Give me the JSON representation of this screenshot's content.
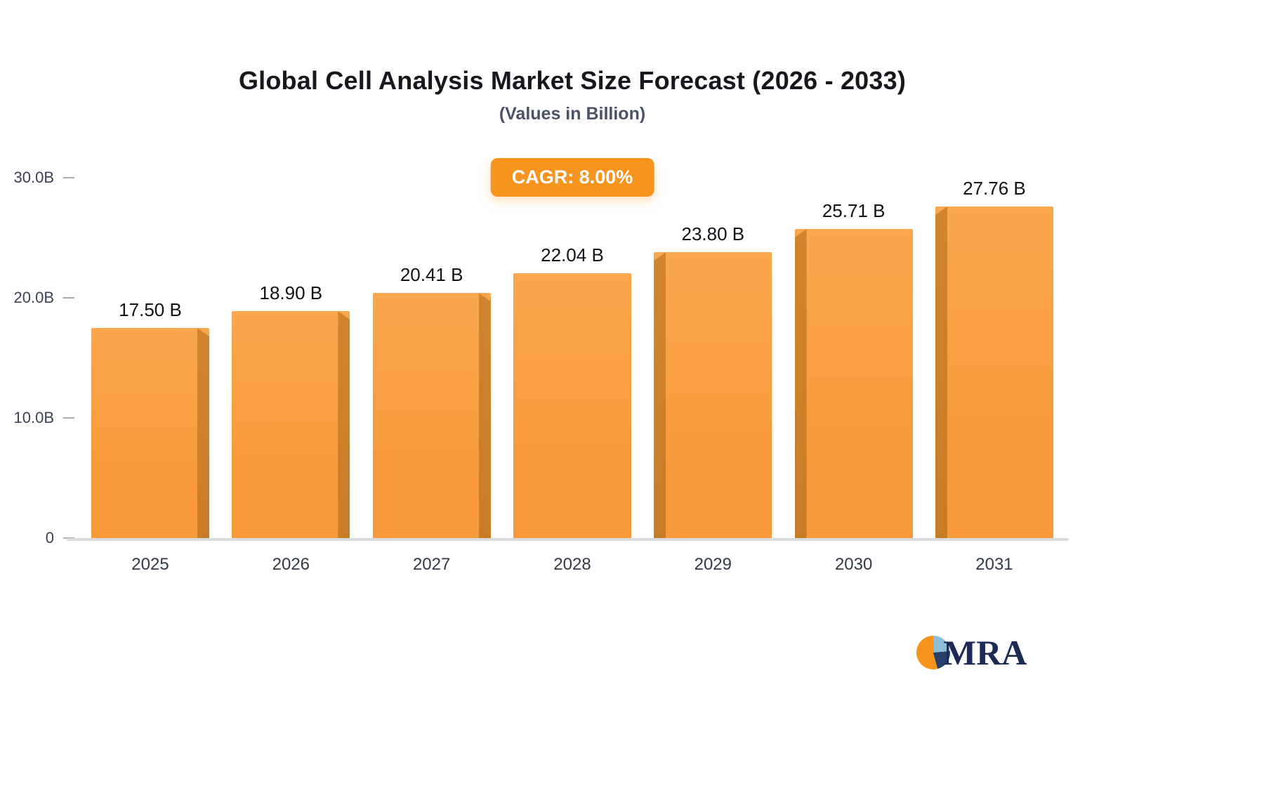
{
  "header": {
    "title": "Global Cell Analysis Market Size Forecast (2026 - 2033)",
    "subtitle": "(Values in Billion)",
    "cagr_badge": "CAGR: 8.00%"
  },
  "logo": {
    "text": "MRA"
  },
  "chart_data": {
    "type": "bar",
    "title": "Global Cell Analysis Market Size Forecast (2026 - 2033)",
    "subtitle": "(Values in Billion)",
    "cagr_percent": 8.0,
    "categories": [
      "2025",
      "2026",
      "2027",
      "2028",
      "2029",
      "2030",
      "2031"
    ],
    "values": [
      17.5,
      18.9,
      20.41,
      22.04,
      23.8,
      25.71,
      27.76
    ],
    "value_labels": [
      "17.50 B",
      "18.90 B",
      "20.41 B",
      "22.04 B",
      "23.80 B",
      "25.71 B",
      "27.76 B"
    ],
    "xlabel": "",
    "ylabel": "",
    "ylim": [
      0,
      30
    ],
    "yticks": [
      {
        "value": 30,
        "label": "30.0B"
      },
      {
        "value": 20,
        "label": "20.0B"
      },
      {
        "value": 10,
        "label": "10.0B"
      },
      {
        "value": 0,
        "label": "0"
      }
    ],
    "grid": false,
    "legend": "none",
    "colors": {
      "bar": "#F8993B",
      "bar_light": "#FAA74F",
      "bar_side": "#C97C28",
      "accent": "#F7941E"
    }
  }
}
